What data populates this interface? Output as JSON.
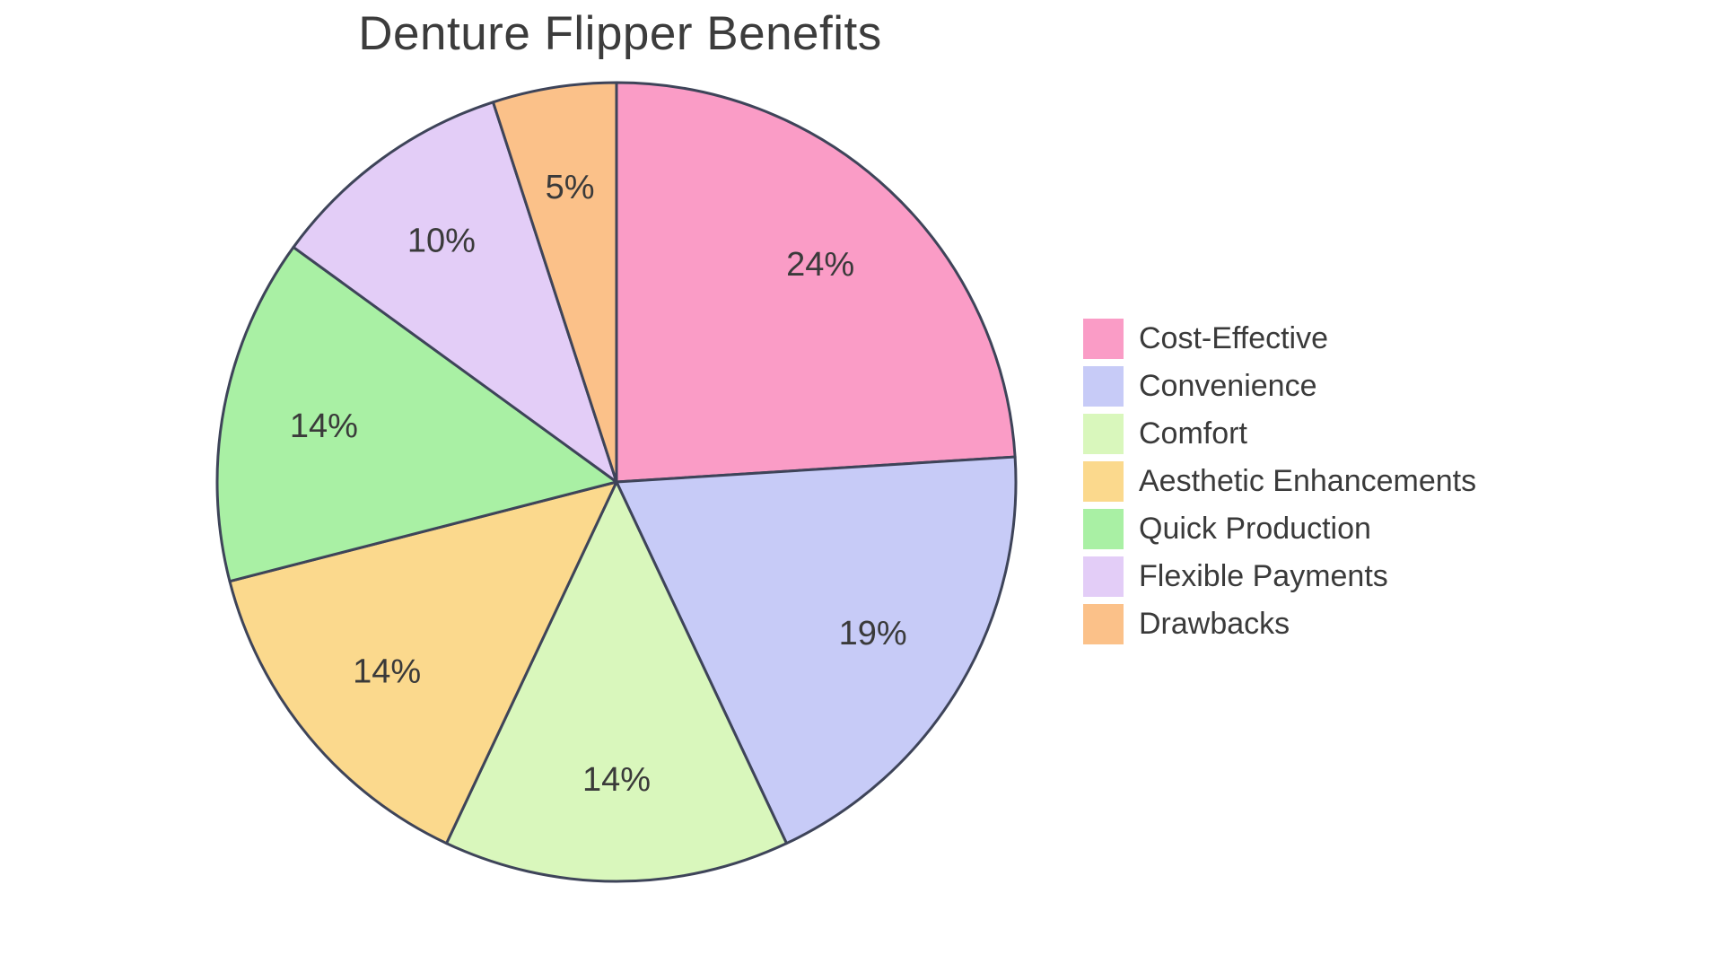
{
  "title": "Denture Flipper Benefits",
  "chart_data": {
    "type": "pie",
    "title": "Denture Flipper Benefits",
    "direction": "clockwise",
    "start_angle_deg": 0,
    "legend_position": "right",
    "stroke_color": "#3e4459",
    "stroke_width": 3,
    "label_color": "#3a3a3a",
    "label_radius_ratio": 0.746,
    "slices": [
      {
        "label": "Cost-Effective",
        "value": 24,
        "pct_label": "24%",
        "color": "#fa9cc6"
      },
      {
        "label": "Convenience",
        "value": 19,
        "pct_label": "19%",
        "color": "#c7cbf7"
      },
      {
        "label": "Comfort",
        "value": 14,
        "pct_label": "14%",
        "color": "#d9f7bc"
      },
      {
        "label": "Aesthetic Enhancements",
        "value": 14,
        "pct_label": "14%",
        "color": "#fbd98d"
      },
      {
        "label": "Quick Production",
        "value": 14,
        "pct_label": "14%",
        "color": "#a9f0a4"
      },
      {
        "label": "Flexible Payments",
        "value": 10,
        "pct_label": "10%",
        "color": "#e3cdf7"
      },
      {
        "label": "Drawbacks",
        "value": 5,
        "pct_label": "5%",
        "color": "#fbc189"
      }
    ]
  }
}
